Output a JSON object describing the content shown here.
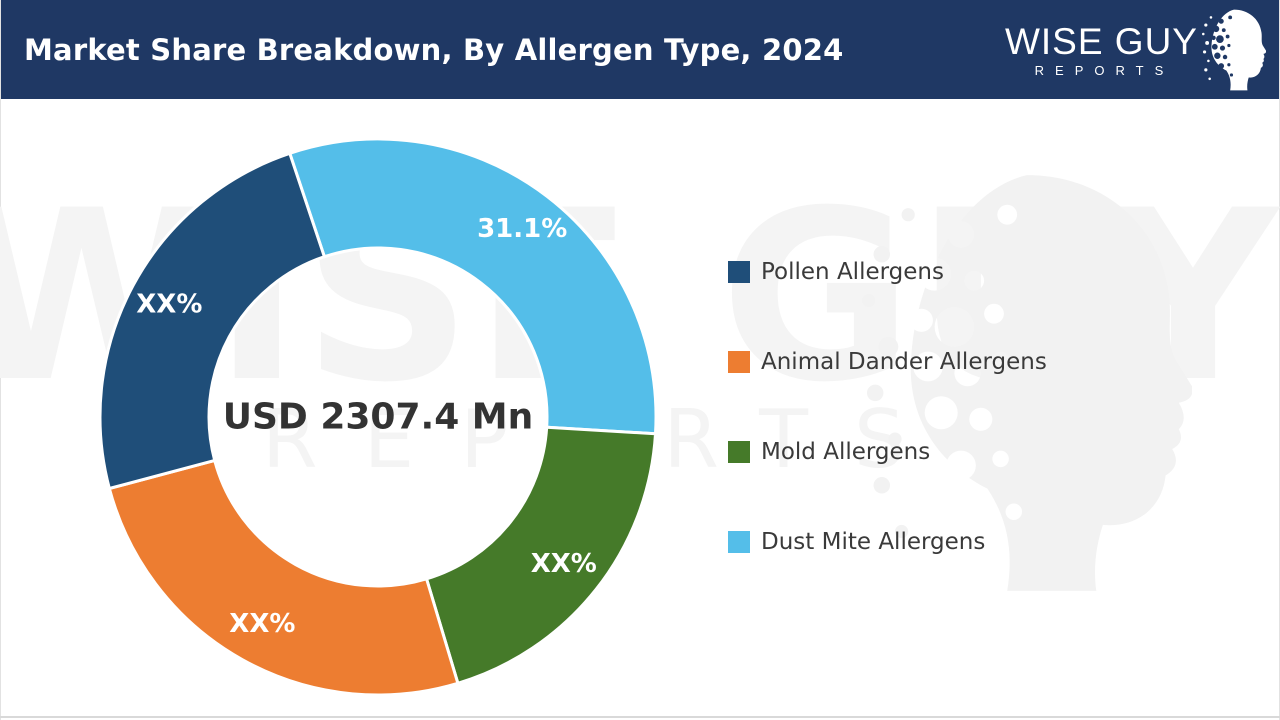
{
  "header": {
    "title": "Market Share Breakdown, By Allergen Type, 2024",
    "background_color": "#1F3864",
    "logo": {
      "line1": "WISE GUY",
      "line2": "REPORTS",
      "head_icon": "wiseguy-head-icon"
    }
  },
  "watermark": {
    "line1": "WISE GUY",
    "line2": "REPORTS",
    "head_icon": "wiseguy-head-icon"
  },
  "chart_data": {
    "type": "donut",
    "title": "Market Share Breakdown, By Allergen Type, 2024",
    "center_label": "USD 2307.4 Mn",
    "start_angle_deg": -18.5,
    "legend_position": "right",
    "categories": [
      "Pollen Allergens",
      "Animal Dander Allergens",
      "Mold Allergens",
      "Dust Mite Allergens"
    ],
    "series": [
      {
        "name": "Pollen Allergens",
        "display_label": "XX%",
        "share_pct": 24.0,
        "color": "#1F4E79"
      },
      {
        "name": "Animal Dander Allergens",
        "display_label": "XX%",
        "share_pct": 25.5,
        "color": "#ED7D31"
      },
      {
        "name": "Mold Allergens",
        "display_label": "XX%",
        "share_pct": 19.4,
        "color": "#457A29"
      },
      {
        "name": "Dust Mite Allergens",
        "display_label": "31.1%",
        "share_pct": 31.1,
        "color": "#54BEE9"
      }
    ]
  }
}
